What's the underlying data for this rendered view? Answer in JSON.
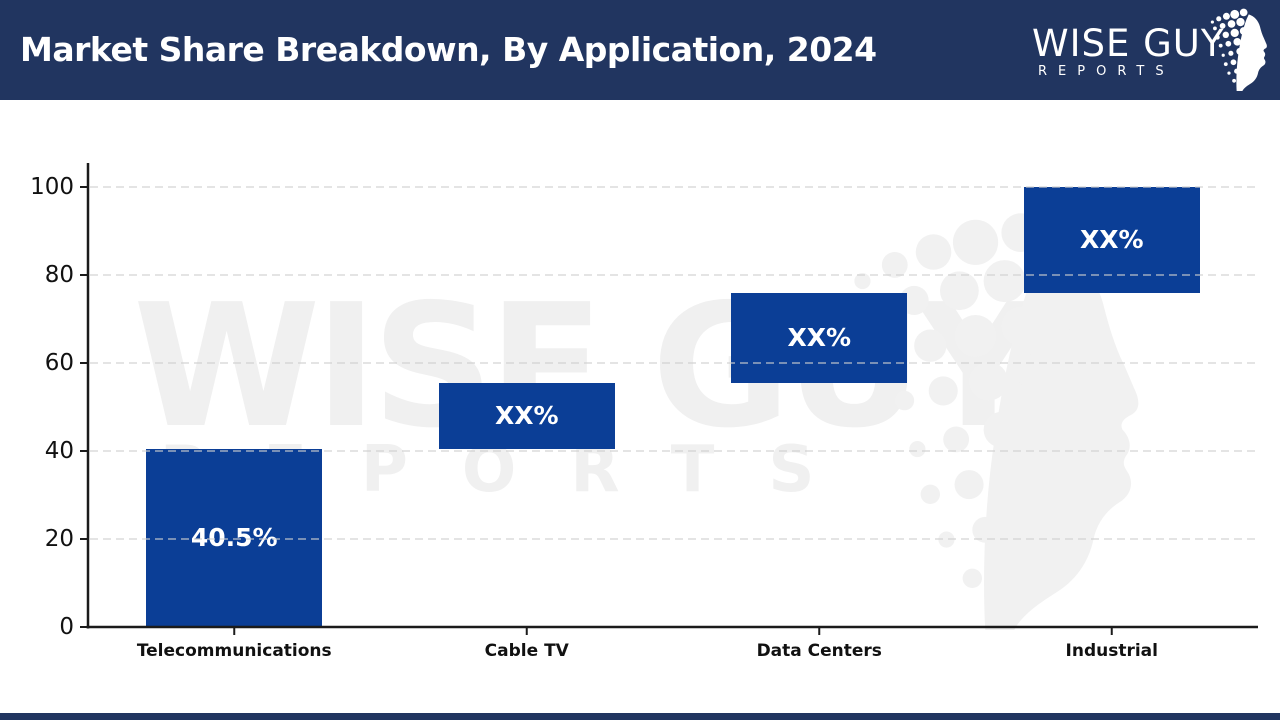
{
  "header": {
    "title": "Market Share Breakdown, By Application, 2024",
    "logo": {
      "line1": "WISE GUY",
      "line2": "REPORTS"
    }
  },
  "watermark": {
    "line1": "WISE GUY",
    "line2": "REPORTS"
  },
  "colors": {
    "header_bg": "#213560",
    "footer_bg": "#213560",
    "bar_fill": "#0b3e96",
    "bar_label_text": "#ffffff",
    "axis_spine": "#1b1b1b",
    "gridline": "#cfcfcf",
    "watermark": "#f0f0f0"
  },
  "icons": {
    "logo_face": "wiseguy-face-icon",
    "watermark_face": "wiseguy-face-watermark-icon"
  },
  "chart_data": {
    "type": "bar",
    "subtype": "waterfall-floating-bars",
    "title": "Market Share Breakdown, By Application, 2024",
    "categories": [
      "Telecommunications",
      "Cable TV",
      "Data Centers",
      "Industrial"
    ],
    "segments": [
      {
        "category": "Telecommunications",
        "label": "40.5%",
        "start": 0,
        "end": 40.5
      },
      {
        "category": "Cable TV",
        "label": "XX%",
        "start": 40.5,
        "end": 55.5
      },
      {
        "category": "Data Centers",
        "label": "XX%",
        "start": 55.5,
        "end": 76
      },
      {
        "category": "Industrial",
        "label": "XX%",
        "start": 76,
        "end": 100
      }
    ],
    "xlabel": "",
    "ylabel": "",
    "ylim": [
      0,
      100
    ],
    "yticks": [
      0,
      20,
      40,
      60,
      80,
      100
    ],
    "grid": "horizontal dashed, drawn over bars",
    "legend": "none"
  }
}
